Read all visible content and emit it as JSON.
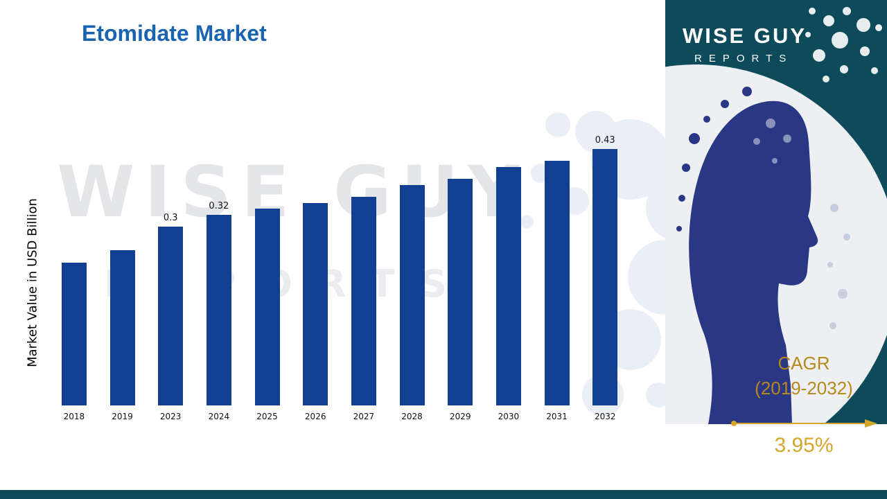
{
  "page": {
    "title": "Etomidate Market"
  },
  "logo": {
    "line1": "WISE GUY",
    "line2": "REPORTS"
  },
  "watermark": {
    "line1": "WISE GUY",
    "line2": "REPORTS"
  },
  "cagr": {
    "label": "CAGR",
    "range": "(2019-2032)",
    "value": "3.95%"
  },
  "colors": {
    "title": "#1a63b0",
    "bar": "#133f92",
    "panel_teal": "#0d4a5a",
    "head_navy": "#293784",
    "gold": "#d4a72c",
    "gold_dark": "#b6891f"
  },
  "chart_data": {
    "type": "bar",
    "title": "Etomidate Market",
    "categories": [
      "2018",
      "2019",
      "2023",
      "2024",
      "2025",
      "2026",
      "2027",
      "2028",
      "2029",
      "2030",
      "2031",
      "2032"
    ],
    "values": [
      0.24,
      0.26,
      0.3,
      0.32,
      0.33,
      0.34,
      0.35,
      0.37,
      0.38,
      0.4,
      0.41,
      0.43
    ],
    "data_labels": [
      "",
      "",
      "0.3",
      "0.32",
      "",
      "",
      "",
      "",
      "",
      "",
      "",
      "0.43"
    ],
    "xlabel": "",
    "ylabel": "Market Value in USD Billion",
    "unit": "USD Billion",
    "ylim": [
      0,
      0.45
    ],
    "grid": false,
    "legend": null,
    "bar_color": "#133f92"
  }
}
